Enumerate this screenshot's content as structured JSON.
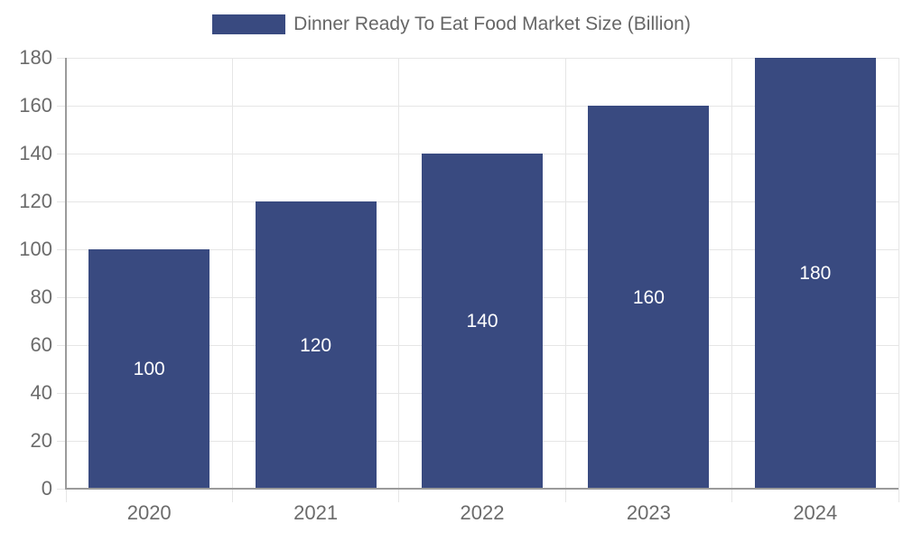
{
  "chart_data": {
    "type": "bar",
    "title": "Dinner Ready To Eat Food Market Size (Billion)",
    "categories": [
      "2020",
      "2021",
      "2022",
      "2023",
      "2024"
    ],
    "values": [
      100,
      120,
      140,
      160,
      180
    ],
    "data_label_texts": [
      "100",
      "120",
      "140",
      "160",
      "180"
    ],
    "xlabel": "",
    "ylabel": "",
    "ylim": [
      0,
      180
    ],
    "yticks": [
      0,
      20,
      40,
      60,
      80,
      100,
      120,
      140,
      160,
      180
    ],
    "grid": true,
    "legend_position": "top",
    "data_labels_position": "inside-center",
    "colors": {
      "bar": "#394a80",
      "bar_label": "#ffffff",
      "axis_text": "#6b6b6b",
      "legend_text": "#666666",
      "grid_line": "#e6e6e6",
      "axis_line": "#9b9b9b",
      "background": "#ffffff"
    }
  }
}
